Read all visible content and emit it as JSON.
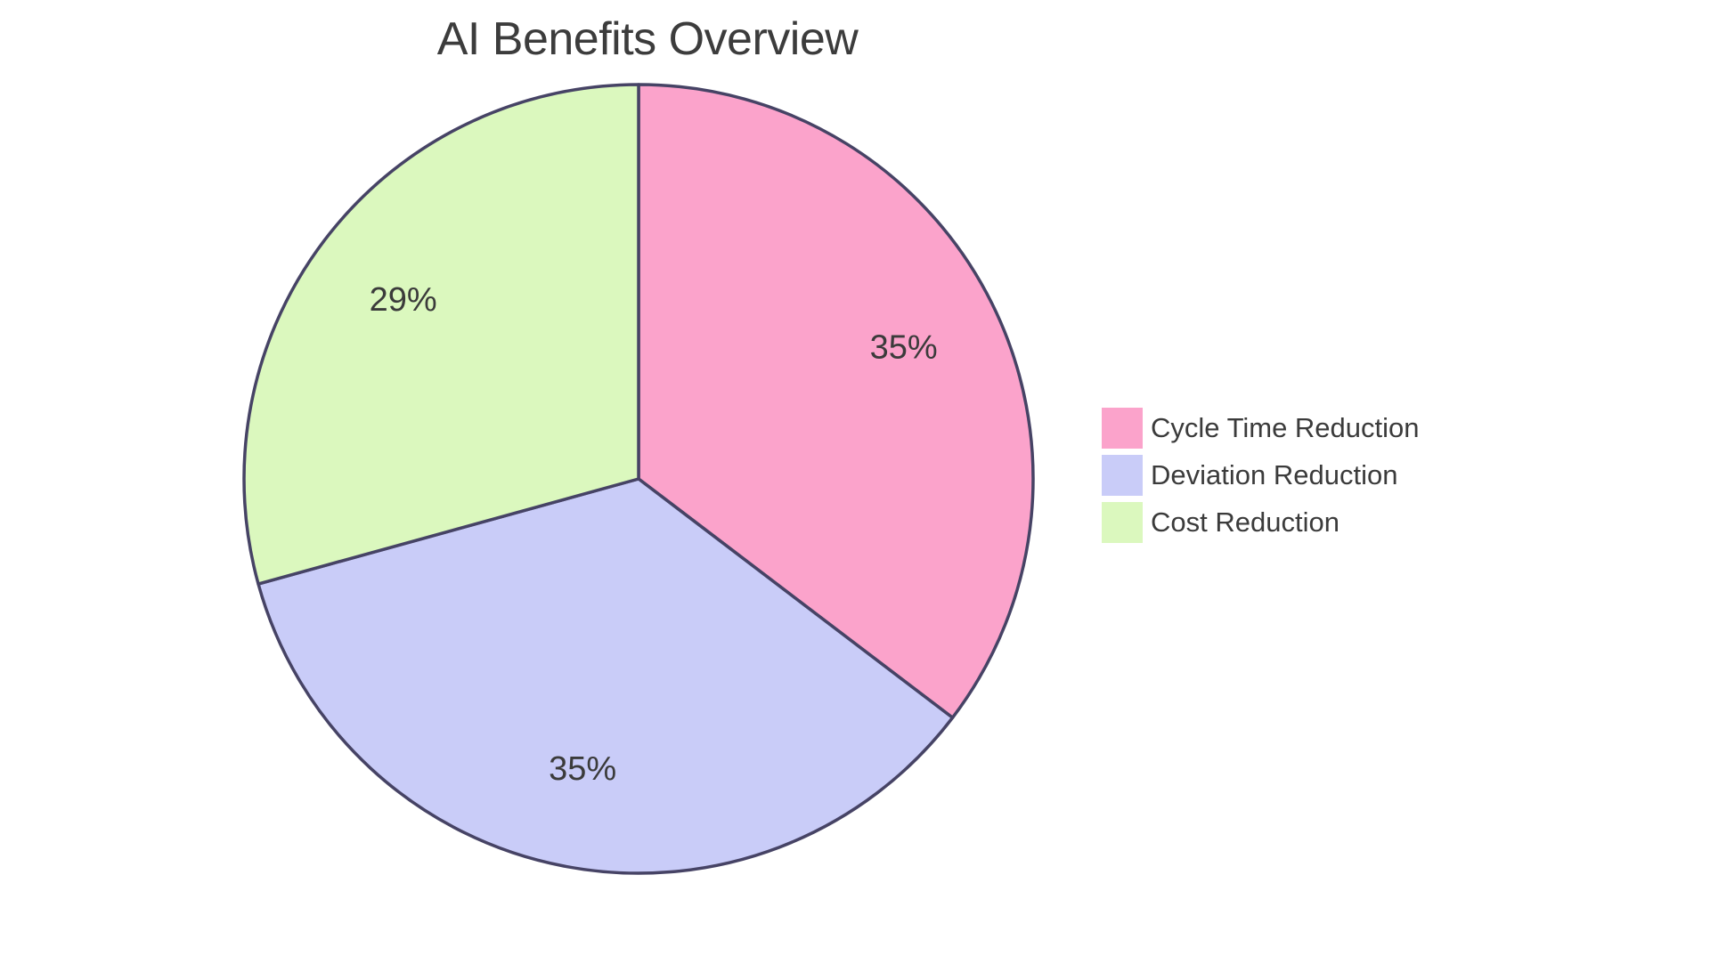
{
  "page": {
    "background_color": "#ffffff"
  },
  "chart_data": {
    "type": "pie",
    "title": "AI Benefits Overview",
    "legend_position": "right",
    "start_angle_deg": 0,
    "direction": "clockwise",
    "stroke_color": "#464365",
    "stroke_width": 3.5,
    "label_color": "#3b3b3b",
    "title_color": "#3c3c3c",
    "slices": [
      {
        "label": "Cycle Time Reduction",
        "value": 35,
        "pct_label": "35%",
        "color": "#FBA3CB"
      },
      {
        "label": "Deviation Reduction",
        "value": 35,
        "pct_label": "35%",
        "color": "#C9CCF8"
      },
      {
        "label": "Cost Reduction",
        "value": 29,
        "pct_label": "29%",
        "color": "#DBF8BE"
      }
    ]
  }
}
